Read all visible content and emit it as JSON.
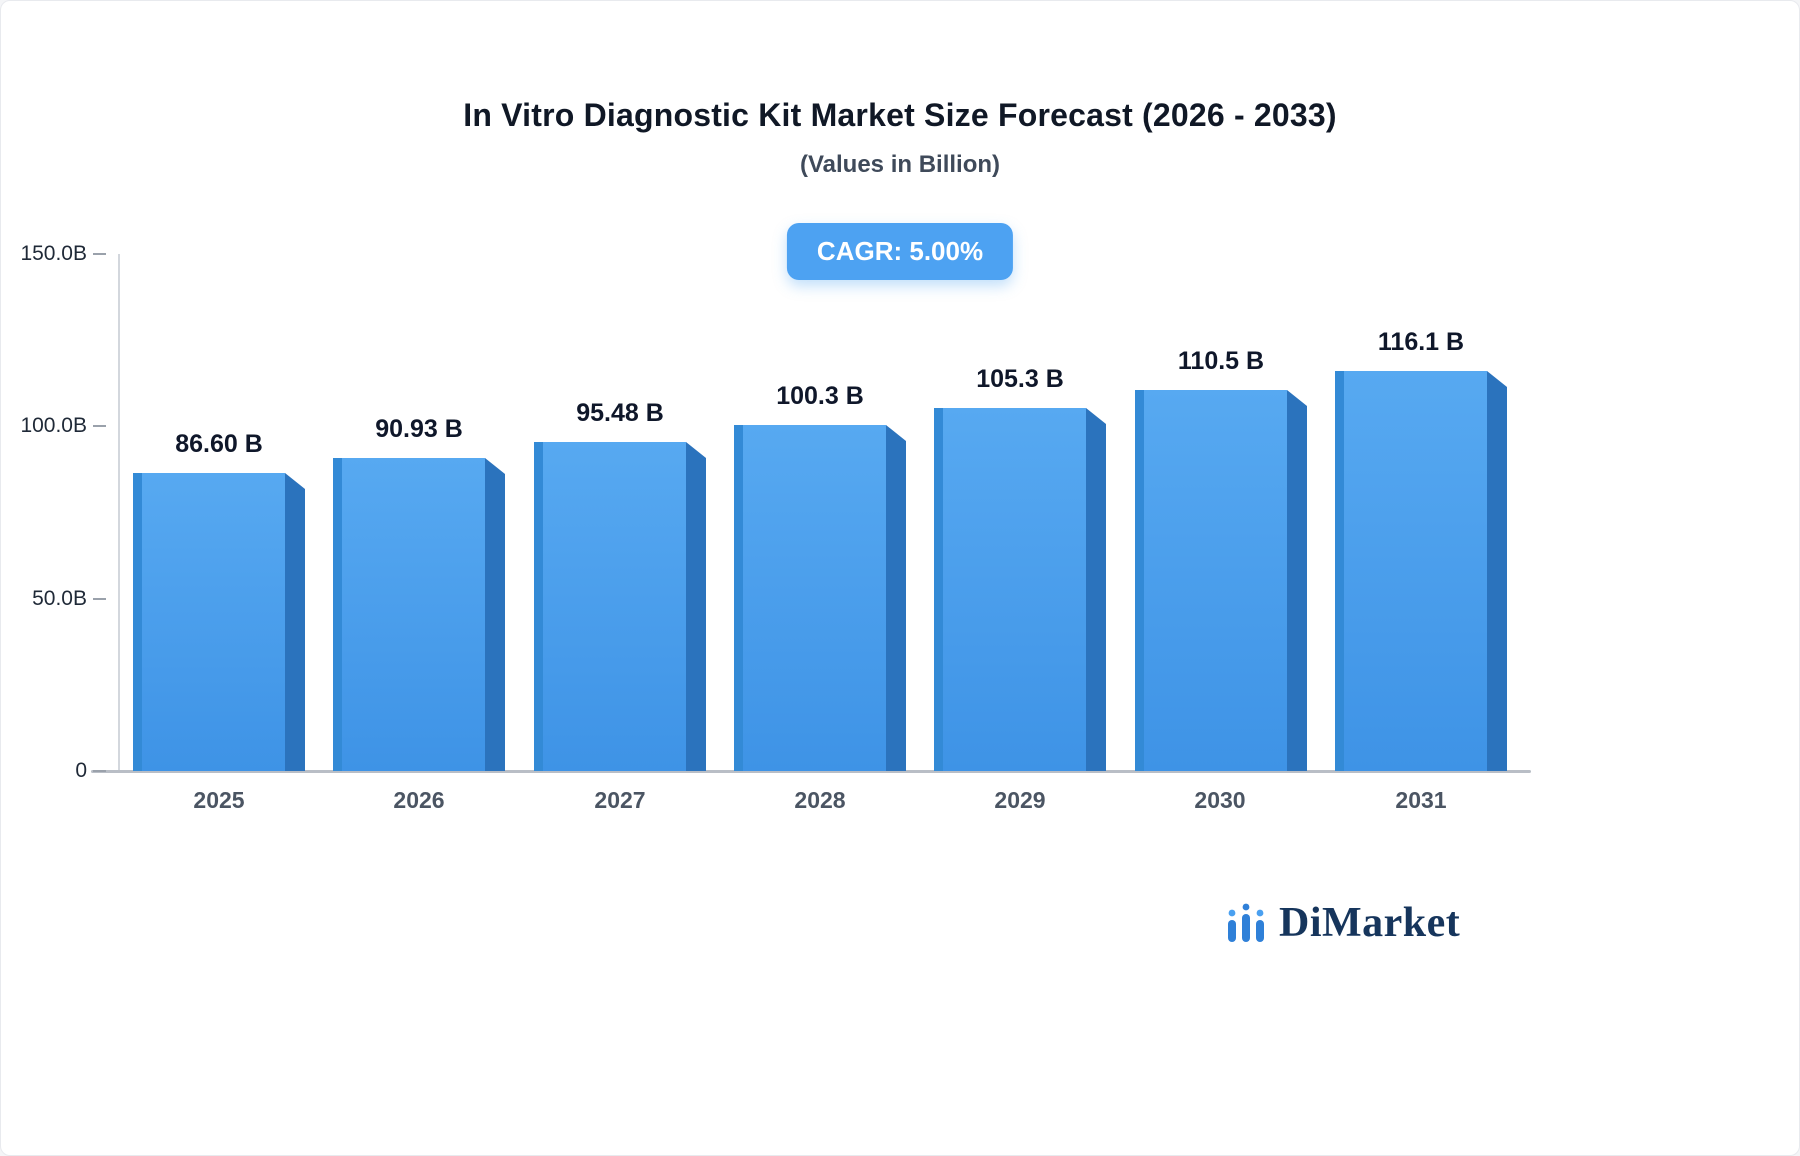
{
  "chart_data": {
    "type": "bar",
    "title": "In Vitro Diagnostic Kit Market Size Forecast (2026 - 2033)",
    "subtitle": "(Values in Billion)",
    "cagr_label": "CAGR: 5.00%",
    "categories": [
      "2025",
      "2026",
      "2027",
      "2028",
      "2029",
      "2030",
      "2031"
    ],
    "values": [
      86.6,
      90.93,
      95.48,
      100.3,
      105.3,
      110.5,
      116.1
    ],
    "value_labels": [
      "86.60 B",
      "90.93 B",
      "95.48 B",
      "100.3 B",
      "105.3 B",
      "110.5 B",
      "116.1 B"
    ],
    "ylim": [
      0,
      150
    ],
    "yticks": [
      {
        "label": "150.0B",
        "value": 150
      },
      {
        "label": "100.0B",
        "value": 100
      },
      {
        "label": "50.0B",
        "value": 50
      },
      {
        "label": "0",
        "value": 0
      }
    ],
    "grid": false,
    "legend": "none",
    "colors": {
      "bar_face_top": "#57a9f1",
      "bar_face_bottom": "#3e93e6",
      "bar_side": "#2b73bd",
      "bar_left_strip": "#338ad6",
      "badge_bg": "#4da2f2",
      "axis_line": "#b9bec6"
    }
  },
  "logo": {
    "text": "DiMarket",
    "icon": "dimarket-bars-icon",
    "icon_color": "#2f80d8"
  }
}
